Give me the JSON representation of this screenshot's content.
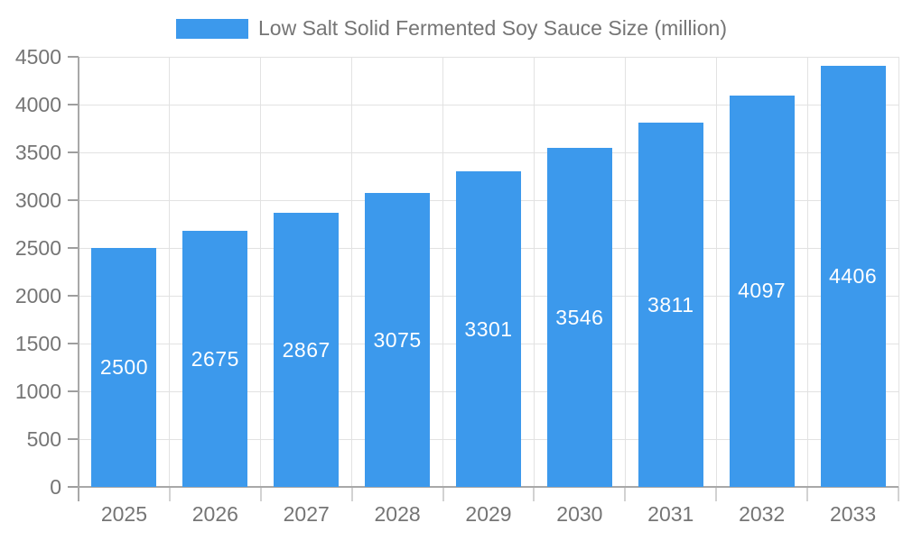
{
  "colors": {
    "bar": "#3C99EC",
    "bar_label": "#FFFFFF",
    "axis_text": "#757575",
    "grid": "#E2E2E2",
    "axis_line": "#A8A8A8",
    "y_tick": "#9E9E9E",
    "x_tick": "#D2D2D2",
    "background": "#FFFFFF"
  },
  "legend": {
    "label": "Low Salt Solid Fermented Soy Sauce Size (million)"
  },
  "chart_data": {
    "type": "bar",
    "title": "Low Salt Solid Fermented Soy Sauce Size (million)",
    "categories": [
      "2025",
      "2026",
      "2027",
      "2028",
      "2029",
      "2030",
      "2031",
      "2032",
      "2033"
    ],
    "values": [
      2500,
      2675,
      2867,
      3075,
      3301,
      3546,
      3811,
      4097,
      4406
    ],
    "xlabel": "",
    "ylabel": "",
    "ylim": [
      0,
      4500
    ],
    "yticks": [
      0,
      500,
      1000,
      1500,
      2000,
      2500,
      3000,
      3500,
      4000,
      4500
    ],
    "grid": true,
    "legend_position": "top",
    "bar_label_position": "center"
  }
}
